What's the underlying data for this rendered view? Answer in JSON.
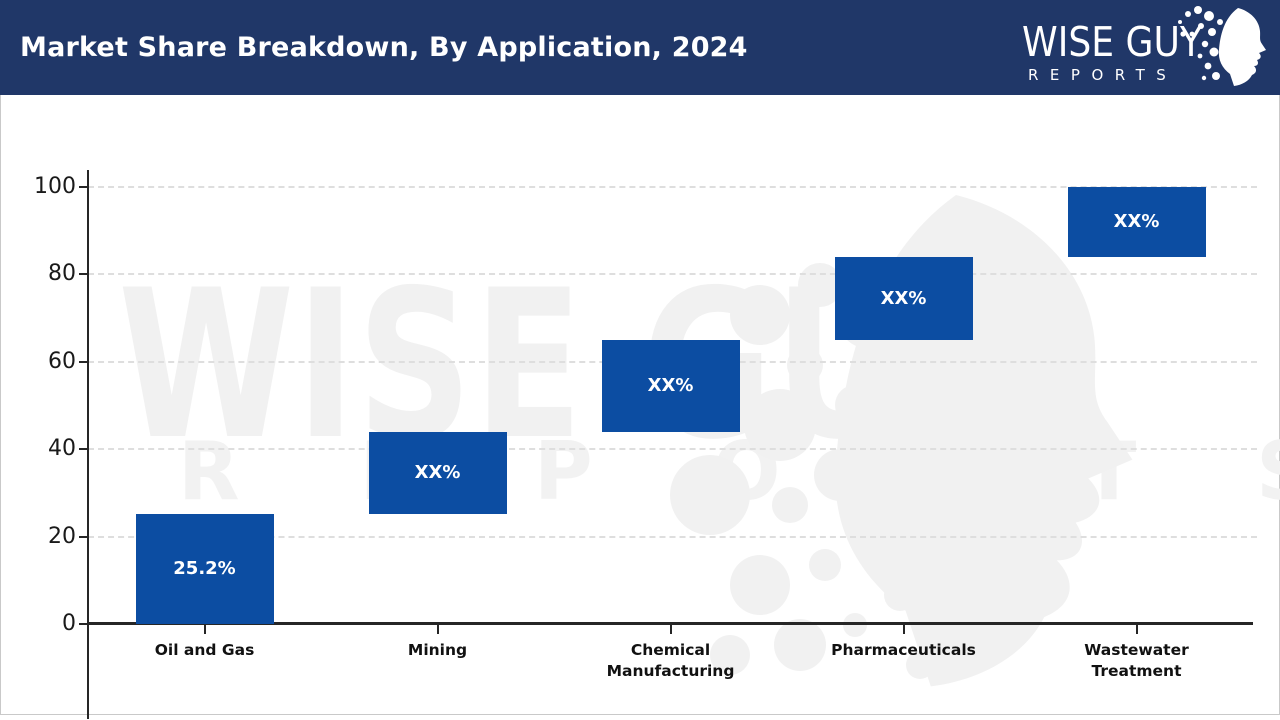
{
  "header": {
    "title": "Market Share Breakdown, By Application, 2024",
    "bg_color": "#203768",
    "logo": {
      "line1": "WISE GUY",
      "line2": "REPORTS"
    }
  },
  "watermark": {
    "line1": "WISE GUY",
    "line2": "REPORTS",
    "color": "#f1f1f1"
  },
  "chart_data": {
    "type": "bar",
    "subtype": "waterfall",
    "title": "Market Share Breakdown, By Application, 2024",
    "categories": [
      "Oil and Gas",
      "Mining",
      "Chemical Manufacturing",
      "Pharmaceuticals",
      "Wastewater Treatment"
    ],
    "segments": [
      {
        "category": "Oil and Gas",
        "start": 0,
        "end": 25.2,
        "label": "25.2%"
      },
      {
        "category": "Mining",
        "start": 25.2,
        "end": 44,
        "label": "XX%"
      },
      {
        "category": "Chemical Manufacturing",
        "start": 44,
        "end": 65,
        "label": "XX%"
      },
      {
        "category": "Pharmaceuticals",
        "start": 65,
        "end": 84,
        "label": "XX%"
      },
      {
        "category": "Wastewater Treatment",
        "start": 84,
        "end": 100,
        "label": "XX%"
      }
    ],
    "y_ticks": [
      0,
      20,
      40,
      60,
      80,
      100
    ],
    "ylim": [
      0,
      100
    ],
    "xlabel": "",
    "ylabel": "",
    "grid": "horizontal-dashed",
    "legend": "none",
    "bar_color": "#0c4da2",
    "axis_color": "#262626",
    "grid_color": "#dedede"
  }
}
